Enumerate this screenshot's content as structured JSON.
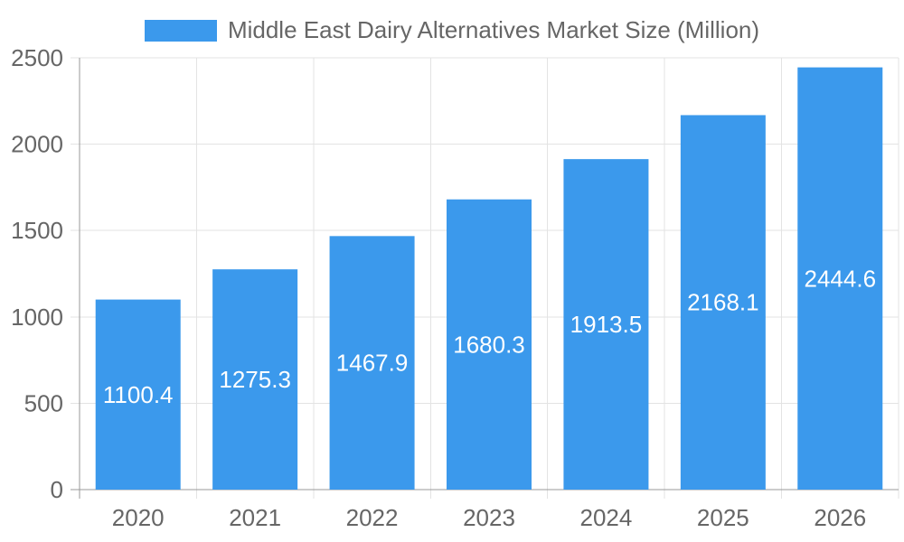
{
  "legend": {
    "label": "Middle East Dairy Alternatives Market Size (Million)"
  },
  "chart_data": {
    "type": "bar",
    "title": "Middle East Dairy Alternatives Market Size (Million)",
    "categories": [
      "2020",
      "2021",
      "2022",
      "2023",
      "2024",
      "2025",
      "2026"
    ],
    "series": [
      {
        "name": "Middle East Dairy Alternatives Market Size (Million)",
        "values": [
          1100.4,
          1275.3,
          1467.9,
          1680.3,
          1913.5,
          2168.1,
          2444.6
        ]
      }
    ],
    "value_labels": [
      "1100.4",
      "1275.3",
      "1467.9",
      "1680.3",
      "1913.5",
      "2168.1",
      "2444.6"
    ],
    "xlabel": "",
    "ylabel": "",
    "ylim": [
      0,
      2500
    ],
    "yticks": [
      0,
      500,
      1000,
      1500,
      2000,
      2500
    ],
    "grid": true,
    "legend_position": "top",
    "bar_color": "#3b99ec",
    "value_label_color": "#ffffff",
    "gridline_color": "#e3e3e3",
    "axis_line_color": "#999999",
    "tick_label_color": "#666666"
  }
}
